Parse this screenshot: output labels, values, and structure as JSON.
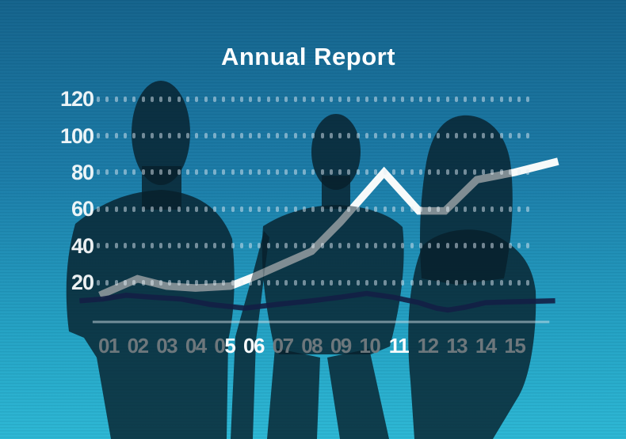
{
  "title": "Annual Report",
  "figures": [
    {
      "name": "businessman-left-silhouette"
    },
    {
      "name": "businessman-center-silhouette"
    },
    {
      "name": "businesswoman-right-silhouette"
    }
  ],
  "colors": {
    "background_top": "#14638c",
    "background_mid": "#1b7ca8",
    "background_lower": "#23a2c4",
    "background_bottom": "#2cb8d5",
    "silhouette": "#071f2b",
    "grid_dot": "#dce8f2",
    "axis_text_dim": "#6d777c",
    "axis_text_bright": "#f8fbfc",
    "title_text": "#fdfeff",
    "line_primary": "#f7fafb",
    "line_secondary": "#131f45",
    "baseline": "#d8e4ea"
  },
  "chart_data": {
    "type": "line",
    "title": "Annual Report",
    "xlabel": "",
    "ylabel": "",
    "ylim": [
      0,
      130
    ],
    "y_ticks": [
      120,
      100,
      80,
      60,
      40,
      20
    ],
    "x_ticks": [
      "01",
      "02",
      "03",
      "04",
      "05",
      "06",
      "07",
      "08",
      "09",
      "10",
      "11",
      "12",
      "13",
      "14",
      "15"
    ],
    "x_ticks_bright": [
      "06",
      "11"
    ],
    "x_ticks_half_bright": [
      "05"
    ],
    "grid": "horizontal dotted rows",
    "legend": "none",
    "series": [
      {
        "name": "white-trend-line",
        "color": "#f7fafb",
        "width": 9.5,
        "underlay": true,
        "points": [
          [
            0.7,
            13
          ],
          [
            2,
            22
          ],
          [
            3,
            18
          ],
          [
            4,
            17
          ],
          [
            5.2,
            18
          ],
          [
            6,
            23
          ],
          [
            7,
            30
          ],
          [
            8,
            37
          ],
          [
            9,
            53
          ],
          [
            10.5,
            80
          ],
          [
            11.7,
            59
          ],
          [
            12.6,
            59
          ],
          [
            13.7,
            76
          ],
          [
            15,
            80
          ],
          [
            16.5,
            86
          ]
        ]
      },
      {
        "name": "navy-baseline-series",
        "color": "#131f45",
        "width": 6.5,
        "opacity": 0.9,
        "points": [
          [
            0,
            10
          ],
          [
            0.8,
            11
          ],
          [
            1.6,
            13
          ],
          [
            2.5,
            12
          ],
          [
            3.5,
            11
          ],
          [
            4.5,
            8
          ],
          [
            5.7,
            6
          ],
          [
            6.8,
            8
          ],
          [
            8,
            10
          ],
          [
            9,
            12
          ],
          [
            9.9,
            14
          ],
          [
            10.8,
            12
          ],
          [
            11.7,
            9
          ],
          [
            12.3,
            6
          ],
          [
            12.7,
            5
          ],
          [
            13.3,
            6.5
          ],
          [
            14,
            9
          ],
          [
            15,
            9.5
          ],
          [
            16.4,
            10
          ]
        ]
      }
    ],
    "x_axis_line": {
      "from": 0.45,
      "to": 16.2,
      "at_value": -1.5
    }
  }
}
